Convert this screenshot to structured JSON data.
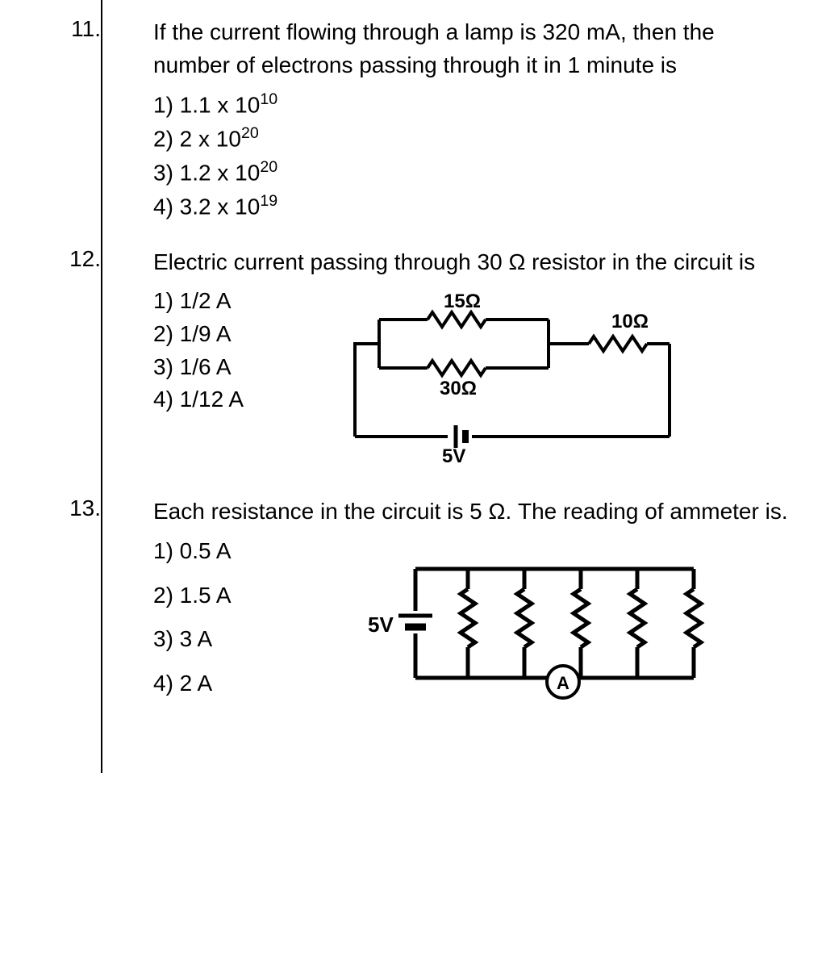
{
  "questions": [
    {
      "number": "11.",
      "text": "If the current flowing through a lamp is 320 mA, then the number of electrons passing through it in 1 minute is",
      "options": [
        "1) 1.1 x 10<sup>10</sup>",
        "2) 2 x 10<sup>20</sup>",
        "3) 1.2 x 10<sup>20</sup>",
        "4) 3.2 x 10<sup>19</sup>"
      ]
    },
    {
      "number": "12.",
      "text": "Electric current passing through 30 Ω resistor in the circuit is",
      "options": [
        "1) 1/2 A",
        "2) 1/9 A",
        "3) 1/6 A",
        "4) 1/12 A"
      ],
      "circuit": {
        "r1_label": "15Ω",
        "r2_label": "30Ω",
        "r3_label": "10Ω",
        "voltage_label": "5V",
        "wire_color": "#000000",
        "text_color": "#000000",
        "font_size_label": 24,
        "font_weight_label": "bold"
      }
    },
    {
      "number": "13.",
      "text": "Each resistance in the circuit is 5 Ω. The reading of ammeter is.",
      "options": [
        "1) 0.5 A",
        "2) 1.5 A",
        "3) 3 A",
        "4) 2 A"
      ],
      "circuit": {
        "voltage_label": "5V",
        "ammeter_label": "A",
        "num_parallel_resistors": 5,
        "wire_color": "#000000",
        "text_color": "#000000",
        "font_size_label": 26,
        "font_weight_label": "bold"
      }
    }
  ]
}
